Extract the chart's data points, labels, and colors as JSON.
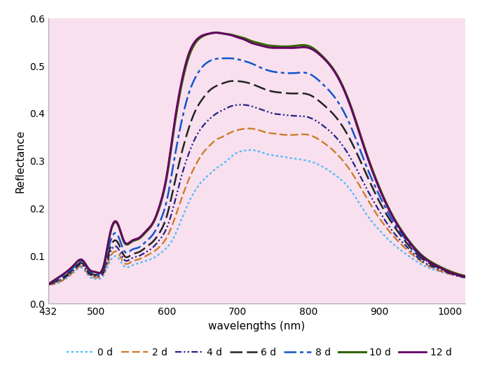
{
  "background_color": "#ffffff",
  "plot_bg_color": "#f8e0ee",
  "xlim": [
    432,
    1022
  ],
  "ylim": [
    0,
    0.6
  ],
  "xlabel": "wavelengths (nm)",
  "ylabel": "Reflectance",
  "xticks": [
    432,
    500,
    600,
    700,
    800,
    900,
    1000
  ],
  "yticks": [
    0,
    0.1,
    0.2,
    0.3,
    0.4,
    0.5,
    0.6
  ],
  "figsize": [
    6.85,
    5.25
  ],
  "dpi": 100,
  "series": [
    {
      "label": "0 d",
      "color": "#4db8ff",
      "ls_key": "dotted",
      "lw": 1.6,
      "key_points": [
        [
          432,
          0.04
        ],
        [
          450,
          0.046
        ],
        [
          470,
          0.068
        ],
        [
          480,
          0.075
        ],
        [
          490,
          0.057
        ],
        [
          500,
          0.052
        ],
        [
          510,
          0.058
        ],
        [
          520,
          0.09
        ],
        [
          530,
          0.098
        ],
        [
          540,
          0.078
        ],
        [
          550,
          0.08
        ],
        [
          560,
          0.085
        ],
        [
          570,
          0.09
        ],
        [
          580,
          0.095
        ],
        [
          590,
          0.105
        ],
        [
          600,
          0.118
        ],
        [
          610,
          0.14
        ],
        [
          620,
          0.175
        ],
        [
          630,
          0.21
        ],
        [
          640,
          0.238
        ],
        [
          650,
          0.258
        ],
        [
          660,
          0.272
        ],
        [
          670,
          0.285
        ],
        [
          680,
          0.295
        ],
        [
          690,
          0.308
        ],
        [
          700,
          0.318
        ],
        [
          710,
          0.322
        ],
        [
          720,
          0.323
        ],
        [
          730,
          0.32
        ],
        [
          740,
          0.315
        ],
        [
          750,
          0.312
        ],
        [
          760,
          0.31
        ],
        [
          780,
          0.305
        ],
        [
          800,
          0.3
        ],
        [
          820,
          0.288
        ],
        [
          840,
          0.268
        ],
        [
          860,
          0.238
        ],
        [
          880,
          0.192
        ],
        [
          900,
          0.155
        ],
        [
          920,
          0.125
        ],
        [
          940,
          0.102
        ],
        [
          960,
          0.082
        ],
        [
          980,
          0.07
        ],
        [
          1000,
          0.062
        ],
        [
          1022,
          0.058
        ]
      ]
    },
    {
      "label": "2 d",
      "color": "#cc7722",
      "ls_key": "dashed_short",
      "lw": 1.6,
      "key_points": [
        [
          432,
          0.04
        ],
        [
          450,
          0.047
        ],
        [
          470,
          0.07
        ],
        [
          480,
          0.078
        ],
        [
          490,
          0.06
        ],
        [
          500,
          0.055
        ],
        [
          510,
          0.062
        ],
        [
          520,
          0.098
        ],
        [
          530,
          0.108
        ],
        [
          540,
          0.085
        ],
        [
          550,
          0.088
        ],
        [
          560,
          0.093
        ],
        [
          570,
          0.1
        ],
        [
          580,
          0.108
        ],
        [
          590,
          0.12
        ],
        [
          600,
          0.14
        ],
        [
          610,
          0.175
        ],
        [
          620,
          0.218
        ],
        [
          630,
          0.258
        ],
        [
          640,
          0.29
        ],
        [
          650,
          0.315
        ],
        [
          660,
          0.332
        ],
        [
          670,
          0.345
        ],
        [
          680,
          0.352
        ],
        [
          690,
          0.36
        ],
        [
          700,
          0.365
        ],
        [
          710,
          0.368
        ],
        [
          720,
          0.368
        ],
        [
          730,
          0.365
        ],
        [
          740,
          0.36
        ],
        [
          750,
          0.358
        ],
        [
          760,
          0.356
        ],
        [
          780,
          0.355
        ],
        [
          800,
          0.355
        ],
        [
          820,
          0.34
        ],
        [
          840,
          0.315
        ],
        [
          860,
          0.278
        ],
        [
          880,
          0.228
        ],
        [
          900,
          0.18
        ],
        [
          920,
          0.142
        ],
        [
          940,
          0.112
        ],
        [
          960,
          0.088
        ],
        [
          980,
          0.072
        ],
        [
          1000,
          0.062
        ],
        [
          1022,
          0.055
        ]
      ]
    },
    {
      "label": "4 d",
      "color": "#222288",
      "ls_key": "dashdotdot",
      "lw": 1.6,
      "key_points": [
        [
          432,
          0.04
        ],
        [
          450,
          0.05
        ],
        [
          470,
          0.073
        ],
        [
          480,
          0.082
        ],
        [
          490,
          0.063
        ],
        [
          500,
          0.058
        ],
        [
          510,
          0.065
        ],
        [
          520,
          0.108
        ],
        [
          530,
          0.118
        ],
        [
          540,
          0.092
        ],
        [
          550,
          0.095
        ],
        [
          560,
          0.1
        ],
        [
          570,
          0.108
        ],
        [
          580,
          0.118
        ],
        [
          590,
          0.135
        ],
        [
          600,
          0.16
        ],
        [
          610,
          0.208
        ],
        [
          620,
          0.265
        ],
        [
          630,
          0.312
        ],
        [
          640,
          0.348
        ],
        [
          650,
          0.372
        ],
        [
          660,
          0.388
        ],
        [
          670,
          0.4
        ],
        [
          680,
          0.408
        ],
        [
          690,
          0.415
        ],
        [
          700,
          0.418
        ],
        [
          710,
          0.418
        ],
        [
          720,
          0.415
        ],
        [
          730,
          0.41
        ],
        [
          740,
          0.405
        ],
        [
          750,
          0.4
        ],
        [
          760,
          0.398
        ],
        [
          780,
          0.395
        ],
        [
          800,
          0.392
        ],
        [
          820,
          0.375
        ],
        [
          840,
          0.348
        ],
        [
          860,
          0.305
        ],
        [
          880,
          0.248
        ],
        [
          900,
          0.195
        ],
        [
          920,
          0.15
        ],
        [
          940,
          0.118
        ],
        [
          960,
          0.09
        ],
        [
          980,
          0.075
        ],
        [
          1000,
          0.063
        ],
        [
          1022,
          0.055
        ]
      ]
    },
    {
      "label": "6 d",
      "color": "#222222",
      "ls_key": "dashed_long",
      "lw": 1.8,
      "key_points": [
        [
          432,
          0.04
        ],
        [
          450,
          0.052
        ],
        [
          470,
          0.076
        ],
        [
          480,
          0.085
        ],
        [
          490,
          0.066
        ],
        [
          500,
          0.06
        ],
        [
          510,
          0.068
        ],
        [
          520,
          0.118
        ],
        [
          530,
          0.13
        ],
        [
          540,
          0.1
        ],
        [
          550,
          0.103
        ],
        [
          560,
          0.108
        ],
        [
          570,
          0.118
        ],
        [
          580,
          0.13
        ],
        [
          590,
          0.15
        ],
        [
          600,
          0.185
        ],
        [
          610,
          0.248
        ],
        [
          620,
          0.312
        ],
        [
          630,
          0.365
        ],
        [
          640,
          0.405
        ],
        [
          650,
          0.43
        ],
        [
          660,
          0.448
        ],
        [
          670,
          0.458
        ],
        [
          680,
          0.464
        ],
        [
          690,
          0.468
        ],
        [
          700,
          0.468
        ],
        [
          710,
          0.466
        ],
        [
          720,
          0.462
        ],
        [
          730,
          0.456
        ],
        [
          740,
          0.45
        ],
        [
          750,
          0.446
        ],
        [
          760,
          0.444
        ],
        [
          780,
          0.442
        ],
        [
          800,
          0.44
        ],
        [
          820,
          0.42
        ],
        [
          840,
          0.39
        ],
        [
          860,
          0.342
        ],
        [
          880,
          0.278
        ],
        [
          900,
          0.215
        ],
        [
          920,
          0.165
        ],
        [
          940,
          0.125
        ],
        [
          960,
          0.095
        ],
        [
          980,
          0.078
        ],
        [
          1000,
          0.065
        ],
        [
          1022,
          0.056
        ]
      ]
    },
    {
      "label": "8 d",
      "color": "#1155cc",
      "ls_key": "dashdot",
      "lw": 1.8,
      "key_points": [
        [
          432,
          0.04
        ],
        [
          450,
          0.055
        ],
        [
          470,
          0.079
        ],
        [
          480,
          0.088
        ],
        [
          490,
          0.069
        ],
        [
          500,
          0.063
        ],
        [
          510,
          0.071
        ],
        [
          520,
          0.13
        ],
        [
          530,
          0.145
        ],
        [
          540,
          0.11
        ],
        [
          550,
          0.113
        ],
        [
          560,
          0.118
        ],
        [
          570,
          0.13
        ],
        [
          580,
          0.145
        ],
        [
          590,
          0.172
        ],
        [
          600,
          0.218
        ],
        [
          610,
          0.3
        ],
        [
          620,
          0.378
        ],
        [
          630,
          0.438
        ],
        [
          640,
          0.475
        ],
        [
          650,
          0.498
        ],
        [
          660,
          0.51
        ],
        [
          670,
          0.515
        ],
        [
          680,
          0.516
        ],
        [
          690,
          0.516
        ],
        [
          700,
          0.514
        ],
        [
          710,
          0.51
        ],
        [
          720,
          0.505
        ],
        [
          730,
          0.498
        ],
        [
          740,
          0.492
        ],
        [
          750,
          0.488
        ],
        [
          760,
          0.486
        ],
        [
          780,
          0.485
        ],
        [
          800,
          0.484
        ],
        [
          820,
          0.462
        ],
        [
          840,
          0.428
        ],
        [
          860,
          0.372
        ],
        [
          880,
          0.296
        ],
        [
          900,
          0.228
        ],
        [
          920,
          0.172
        ],
        [
          940,
          0.13
        ],
        [
          960,
          0.098
        ],
        [
          980,
          0.08
        ],
        [
          1000,
          0.066
        ],
        [
          1022,
          0.057
        ]
      ]
    },
    {
      "label": "10 d",
      "color": "#336600",
      "ls_key": "solid",
      "lw": 2.2,
      "key_points": [
        [
          432,
          0.04
        ],
        [
          450,
          0.058
        ],
        [
          470,
          0.083
        ],
        [
          480,
          0.092
        ],
        [
          490,
          0.072
        ],
        [
          500,
          0.066
        ],
        [
          510,
          0.076
        ],
        [
          520,
          0.148
        ],
        [
          530,
          0.168
        ],
        [
          540,
          0.128
        ],
        [
          550,
          0.13
        ],
        [
          560,
          0.136
        ],
        [
          570,
          0.15
        ],
        [
          580,
          0.168
        ],
        [
          590,
          0.205
        ],
        [
          600,
          0.268
        ],
        [
          610,
          0.368
        ],
        [
          620,
          0.455
        ],
        [
          630,
          0.515
        ],
        [
          640,
          0.548
        ],
        [
          650,
          0.562
        ],
        [
          660,
          0.568
        ],
        [
          670,
          0.57
        ],
        [
          680,
          0.568
        ],
        [
          690,
          0.566
        ],
        [
          700,
          0.562
        ],
        [
          710,
          0.558
        ],
        [
          720,
          0.552
        ],
        [
          730,
          0.548
        ],
        [
          740,
          0.544
        ],
        [
          750,
          0.542
        ],
        [
          760,
          0.541
        ],
        [
          780,
          0.542
        ],
        [
          800,
          0.542
        ],
        [
          820,
          0.52
        ],
        [
          840,
          0.482
        ],
        [
          860,
          0.415
        ],
        [
          880,
          0.325
        ],
        [
          900,
          0.245
        ],
        [
          920,
          0.182
        ],
        [
          940,
          0.136
        ],
        [
          960,
          0.102
        ],
        [
          980,
          0.082
        ],
        [
          1000,
          0.068
        ],
        [
          1022,
          0.058
        ]
      ]
    },
    {
      "label": "12 d",
      "color": "#660066",
      "ls_key": "solid",
      "lw": 2.0,
      "key_points": [
        [
          432,
          0.04
        ],
        [
          450,
          0.058
        ],
        [
          470,
          0.083
        ],
        [
          480,
          0.092
        ],
        [
          490,
          0.072
        ],
        [
          500,
          0.066
        ],
        [
          510,
          0.076
        ],
        [
          520,
          0.15
        ],
        [
          530,
          0.17
        ],
        [
          540,
          0.13
        ],
        [
          550,
          0.132
        ],
        [
          560,
          0.138
        ],
        [
          570,
          0.152
        ],
        [
          580,
          0.17
        ],
        [
          590,
          0.208
        ],
        [
          600,
          0.272
        ],
        [
          610,
          0.375
        ],
        [
          620,
          0.462
        ],
        [
          630,
          0.522
        ],
        [
          640,
          0.552
        ],
        [
          650,
          0.564
        ],
        [
          660,
          0.568
        ],
        [
          670,
          0.57
        ],
        [
          680,
          0.568
        ],
        [
          690,
          0.565
        ],
        [
          700,
          0.56
        ],
        [
          710,
          0.555
        ],
        [
          720,
          0.548
        ],
        [
          730,
          0.544
        ],
        [
          740,
          0.54
        ],
        [
          750,
          0.538
        ],
        [
          760,
          0.538
        ],
        [
          780,
          0.538
        ],
        [
          800,
          0.538
        ],
        [
          820,
          0.518
        ],
        [
          840,
          0.48
        ],
        [
          860,
          0.412
        ],
        [
          880,
          0.322
        ],
        [
          900,
          0.242
        ],
        [
          920,
          0.18
        ],
        [
          940,
          0.134
        ],
        [
          960,
          0.1
        ],
        [
          980,
          0.08
        ],
        [
          1000,
          0.066
        ],
        [
          1022,
          0.057
        ]
      ]
    }
  ]
}
